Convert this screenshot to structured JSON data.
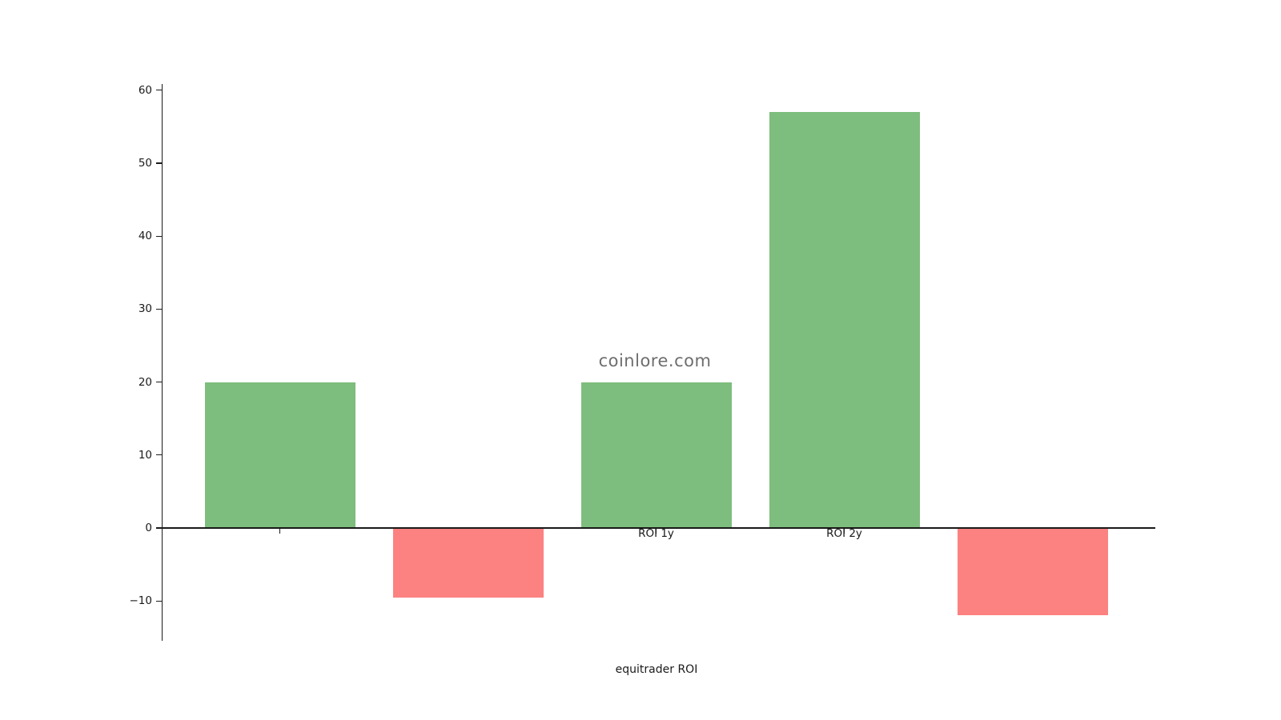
{
  "watermark": "coinlore.com",
  "chart_data": {
    "type": "bar",
    "title": "",
    "xlabel": "equitrader ROI",
    "ylabel": "",
    "categories": [
      "",
      "",
      "ROI 1y",
      "ROI 2y",
      ""
    ],
    "values": [
      20,
      -9.5,
      20,
      57,
      -12
    ],
    "positive_color": "#7dbd7d",
    "negative_color": "#fc8181",
    "axis_color": "#1a1a1a",
    "text_color": "#1a1a1a",
    "watermark_color": "#6e6e6e",
    "yticks": [
      60,
      50,
      40,
      30,
      20,
      10,
      0,
      -10
    ],
    "ylim": [
      -15.5,
      60.9
    ],
    "xtick_marks_visible": [
      true,
      false,
      true,
      true,
      false
    ],
    "grid": false,
    "legend": "none",
    "background": "#ffffff"
  }
}
